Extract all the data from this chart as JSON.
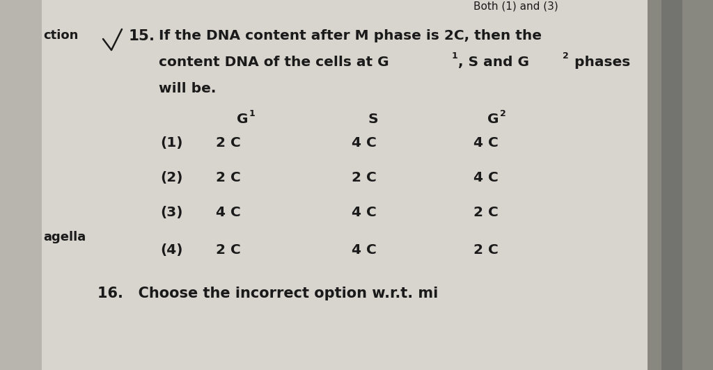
{
  "bg_color": "#b8b4ae",
  "page_color": "#d8d4ce",
  "right_edge_color": "#888880",
  "font_color": "#1a1a1a",
  "top_right_text": "Both (1) and (3)",
  "side_left_text": "ction",
  "side_left2_text": "agella",
  "q_num": "15.",
  "q_line1": "If the DNA content after M phase is 2C, then the",
  "q_line2a": "content DNA of the cells at G",
  "q_line2b": "1",
  "q_line2c": ", S and G",
  "q_line2d": "2",
  "q_line2e": " phases",
  "q_line3": "will be.",
  "col_g1": "G",
  "col_g1_sub": "1",
  "col_s": "S",
  "col_g2": "G",
  "col_g2_sub": "2",
  "options": [
    {
      "num": "(1)",
      "g1": "2 C",
      "s": "4 C",
      "g2": "4 C"
    },
    {
      "num": "(2)",
      "g1": "2 C",
      "s": "2 C",
      "g2": "4 C"
    },
    {
      "num": "(3)",
      "g1": "4 C",
      "s": "4 C",
      "g2": "2 C"
    },
    {
      "num": "(4)",
      "g1": "2 C",
      "s": "4 C",
      "g2": "2 C"
    }
  ],
  "q16_text": "16.   Choose the incorrect option w.r.t. mi",
  "fs_q": 14.5,
  "fs_opt": 14.5,
  "fs_hdr": 14.5,
  "fs_sub": 9,
  "fs_side": 13,
  "fs_topright": 11
}
